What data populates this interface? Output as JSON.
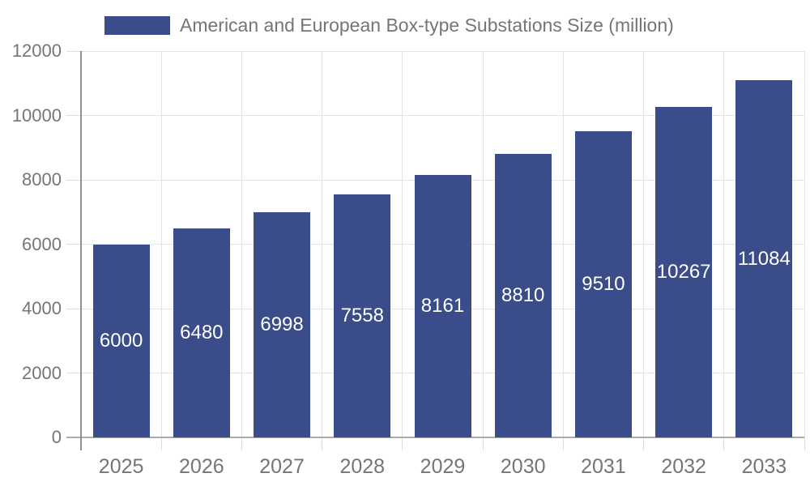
{
  "chart_data": {
    "type": "bar",
    "title": "",
    "legend_label": "American and European Box-type Substations Size (million)",
    "legend_position": "top",
    "categories": [
      "2025",
      "2026",
      "2027",
      "2028",
      "2029",
      "2030",
      "2031",
      "2032",
      "2033"
    ],
    "values": [
      6000,
      6480,
      6998,
      7558,
      8161,
      8810,
      9510,
      10267,
      11084
    ],
    "xlabel": "",
    "ylabel": "",
    "ylim": [
      0,
      12000
    ],
    "yticks": [
      0,
      2000,
      4000,
      6000,
      8000,
      10000,
      12000
    ],
    "ytick_labels": [
      "0",
      "2000",
      "4000",
      "6000",
      "8000",
      "10000",
      "12000"
    ],
    "grid": true,
    "value_labels_inside_bars": true,
    "colors": {
      "bar": "#3A4C8A",
      "bar_value_label": "#ffffff",
      "axis_text": "#757575",
      "y_axis_line": "#8f8f8f",
      "x_axis_line": "#ababab",
      "gridline": "#e4e4e4",
      "tick": "#dcdcdc",
      "background": "#ffffff"
    }
  }
}
